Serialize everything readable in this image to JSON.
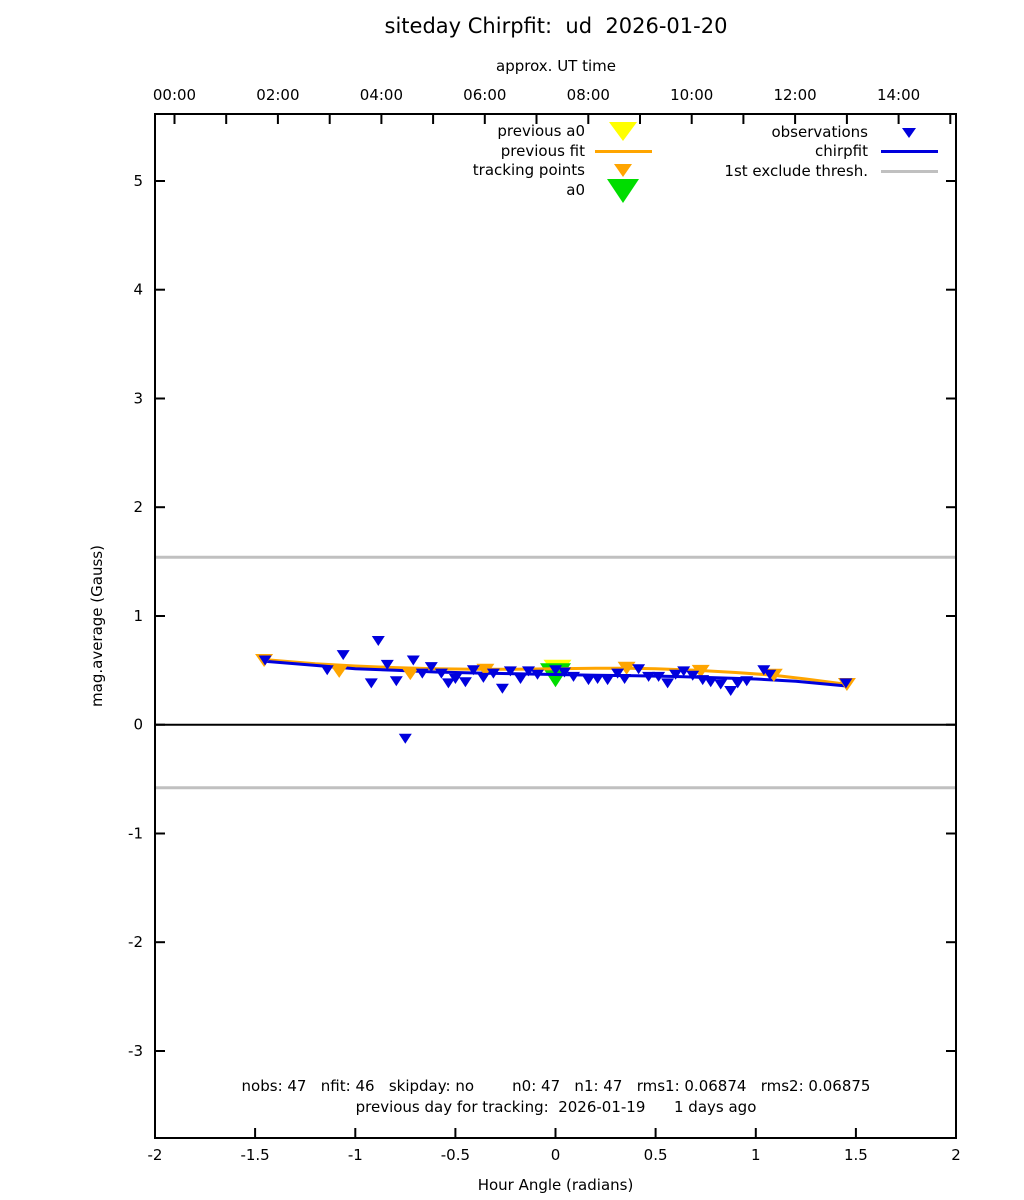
{
  "title": "siteday Chirpfit:  ud  2026-01-20",
  "colors": {
    "blue": "#0000dd",
    "orange": "#ffa500",
    "yellow": "#ffff00",
    "green": "#00dd00",
    "gray": "#c0c0c0",
    "black": "#000000"
  },
  "legend": {
    "left": [
      {
        "label": "previous a0",
        "marker": "triangle-large-yellow"
      },
      {
        "label": "previous fit",
        "marker": "line-orange"
      },
      {
        "label": "tracking points",
        "marker": "triangle-small-orange"
      },
      {
        "label": "a0",
        "marker": "triangle-large-green"
      }
    ],
    "right": [
      {
        "label": "observations",
        "marker": "triangle-small-blue"
      },
      {
        "label": "chirpfit",
        "marker": "line-blue"
      },
      {
        "label": "1st exclude thresh.",
        "marker": "line-gray"
      }
    ]
  },
  "stats": {
    "line1": "nobs: 47   nfit: 46   skipday: no        n0: 47   n1: 47   rms1: 0.06874   rms2: 0.06875",
    "line2": "previous day for tracking:  2026-01-19      1 days ago"
  },
  "chart_data": {
    "type": "scatter",
    "title": "siteday Chirpfit:  ud  2026-01-20",
    "xlabel": "Hour Angle (radians)",
    "x2label": "approx. UT time",
    "ylabel": "mag.average (Gauss)",
    "xlim": [
      -2,
      2
    ],
    "ylim": [
      -3.8,
      5.6
    ],
    "grid": false,
    "legend_position": "top-inside",
    "x_ticks": [
      -2,
      -1.5,
      -1,
      -0.5,
      0,
      0.5,
      1,
      1.5,
      2
    ],
    "y_ticks": [
      -3,
      -2,
      -1,
      0,
      1,
      2,
      3,
      4,
      5
    ],
    "x2_ticks_hours": [
      0,
      1,
      2,
      3,
      4,
      5,
      6,
      7,
      8,
      9,
      10,
      11,
      12,
      13,
      14,
      15
    ],
    "x2_tick_labels": [
      [
        0,
        "00:00"
      ],
      [
        2,
        "02:00"
      ],
      [
        4,
        "04:00"
      ],
      [
        6,
        "06:00"
      ],
      [
        8,
        "08:00"
      ],
      [
        10,
        "10:00"
      ],
      [
        12,
        "12:00"
      ],
      [
        14,
        "14:00"
      ]
    ],
    "zero_line": 0,
    "exclude_thresholds": [
      1.54,
      -0.58
    ],
    "series": {
      "observations": [
        [
          -1.45,
          0.59
        ],
        [
          -1.14,
          0.5
        ],
        [
          -1.06,
          0.64
        ],
        [
          -0.92,
          0.38
        ],
        [
          -0.885,
          0.77
        ],
        [
          -0.84,
          0.55
        ],
        [
          -0.795,
          0.4
        ],
        [
          -0.75,
          -0.13
        ],
        [
          -0.71,
          0.59
        ],
        [
          -0.665,
          0.47
        ],
        [
          -0.62,
          0.53
        ],
        [
          -0.57,
          0.47
        ],
        [
          -0.535,
          0.38
        ],
        [
          -0.5,
          0.42
        ],
        [
          -0.45,
          0.39
        ],
        [
          -0.41,
          0.5
        ],
        [
          -0.36,
          0.43
        ],
        [
          -0.31,
          0.47
        ],
        [
          -0.265,
          0.33
        ],
        [
          -0.225,
          0.49
        ],
        [
          -0.175,
          0.42
        ],
        [
          -0.135,
          0.49
        ],
        [
          -0.09,
          0.46
        ],
        [
          0.0,
          0.5
        ],
        [
          0.045,
          0.48
        ],
        [
          0.09,
          0.44
        ],
        [
          0.165,
          0.41
        ],
        [
          0.21,
          0.42
        ],
        [
          0.26,
          0.41
        ],
        [
          0.31,
          0.47
        ],
        [
          0.345,
          0.42
        ],
        [
          0.415,
          0.51
        ],
        [
          0.465,
          0.44
        ],
        [
          0.515,
          0.44
        ],
        [
          0.56,
          0.38
        ],
        [
          0.6,
          0.46
        ],
        [
          0.64,
          0.49
        ],
        [
          0.685,
          0.45
        ],
        [
          0.735,
          0.41
        ],
        [
          0.775,
          0.39
        ],
        [
          0.825,
          0.37
        ],
        [
          0.875,
          0.31
        ],
        [
          0.91,
          0.38
        ],
        [
          0.955,
          0.4
        ],
        [
          1.04,
          0.5
        ],
        [
          1.07,
          0.46
        ],
        [
          1.45,
          0.38
        ]
      ],
      "tracking_points": [
        [
          -1.455,
          0.59
        ],
        [
          -1.08,
          0.49
        ],
        [
          -0.725,
          0.47
        ],
        [
          -0.35,
          0.5
        ],
        [
          0.355,
          0.52
        ],
        [
          0.725,
          0.49
        ],
        [
          1.09,
          0.455
        ],
        [
          1.455,
          0.37
        ]
      ],
      "previous_a0": [
        [
          0.01,
          0.51
        ]
      ],
      "a0": [
        [
          0.0,
          0.455
        ]
      ],
      "previous_fit": [
        [
          -1.46,
          0.6
        ],
        [
          -1.2,
          0.56
        ],
        [
          -1.0,
          0.54
        ],
        [
          -0.8,
          0.525
        ],
        [
          -0.6,
          0.515
        ],
        [
          -0.4,
          0.51
        ],
        [
          -0.2,
          0.51
        ],
        [
          0.0,
          0.515
        ],
        [
          0.2,
          0.52
        ],
        [
          0.35,
          0.52
        ],
        [
          0.5,
          0.515
        ],
        [
          0.7,
          0.5
        ],
        [
          0.9,
          0.48
        ],
        [
          1.09,
          0.455
        ],
        [
          1.25,
          0.42
        ],
        [
          1.46,
          0.37
        ]
      ],
      "chirpfit": [
        [
          -1.46,
          0.585
        ],
        [
          -1.2,
          0.545
        ],
        [
          -1.0,
          0.515
        ],
        [
          -0.8,
          0.5
        ],
        [
          -0.6,
          0.485
        ],
        [
          -0.4,
          0.475
        ],
        [
          -0.2,
          0.468
        ],
        [
          0.0,
          0.462
        ],
        [
          0.2,
          0.455
        ],
        [
          0.4,
          0.45
        ],
        [
          0.6,
          0.443
        ],
        [
          0.8,
          0.432
        ],
        [
          1.0,
          0.42
        ],
        [
          1.2,
          0.4
        ],
        [
          1.46,
          0.355
        ]
      ]
    }
  }
}
